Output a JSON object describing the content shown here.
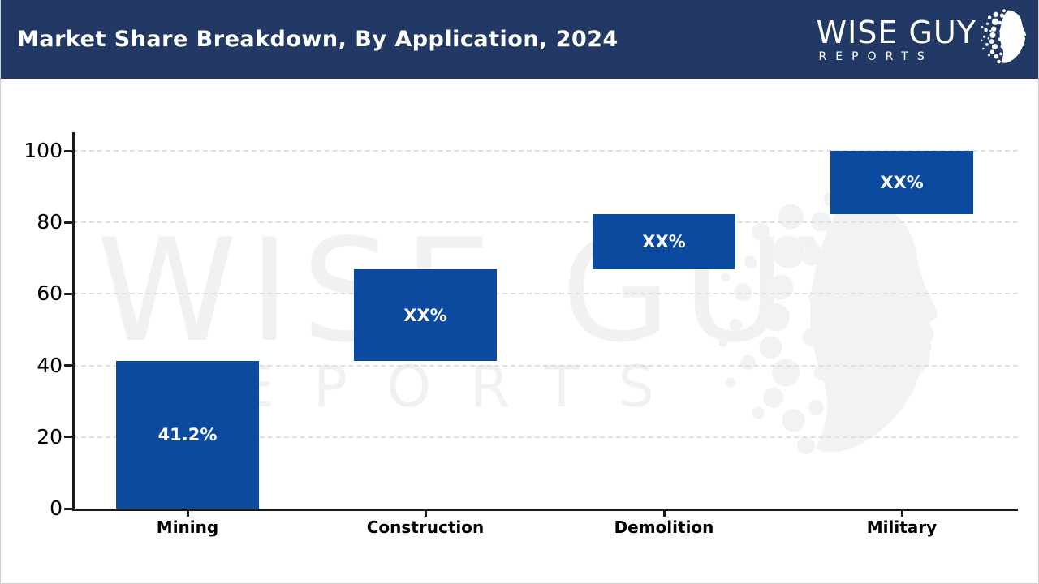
{
  "header": {
    "title": "Market Share Breakdown, By Application, 2024",
    "logo": {
      "line1": "WISE GUY",
      "line2": "REPORTS"
    }
  },
  "watermark": {
    "line1": "WISE GUY",
    "line2": "REPORTS"
  },
  "chart_data": {
    "type": "bar",
    "subtype": "waterfall-floating-bars",
    "title": "Market Share Breakdown, By Application, 2024",
    "categories": [
      "Mining",
      "Construction",
      "Demolition",
      "Military"
    ],
    "segments": [
      {
        "category": "Mining",
        "label": "41.2%",
        "start": 0,
        "end": 41.2
      },
      {
        "category": "Construction",
        "label": "XX%",
        "start": 41.2,
        "end": 66.8
      },
      {
        "category": "Demolition",
        "label": "XX%",
        "start": 66.8,
        "end": 82.4
      },
      {
        "category": "Military",
        "label": "XX%",
        "start": 82.4,
        "end": 100
      }
    ],
    "yticks": [
      0,
      20,
      40,
      60,
      80,
      100
    ],
    "ylim": [
      0,
      105
    ],
    "xlabel": "",
    "ylabel": "",
    "grid": "horizontal-dashed",
    "legend": "none"
  },
  "colors": {
    "header_bg": "#223966",
    "bar": "#0b4a9f",
    "bar_label": "#ffffff",
    "axis": "#1a1a1a",
    "grid": "#e0e0e0",
    "watermark": "#f1f1f2"
  }
}
